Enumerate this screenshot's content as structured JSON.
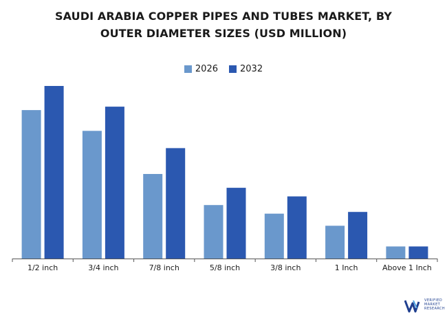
{
  "title_line1": "SAUDI ARABIA COPPER PIPES AND TUBES MARKET, BY",
  "title_line2": "OUTER DIAMETER SIZES (USD MILLION)",
  "colors": {
    "s2026": "#6a98cc",
    "s2032": "#2b58b0",
    "axis": "#555555",
    "text": "#1a1a1a"
  },
  "logo": {
    "line1": "VERIFIED",
    "line2": "MARKET",
    "line3": "RESEARCH",
    "icon": "vmr-logo-icon"
  },
  "chart_data": {
    "type": "bar",
    "title": "SAUDI ARABIA COPPER PIPES AND TUBES MARKET, BY OUTER DIAMETER SIZES (USD MILLION)",
    "categories": [
      "1/2 inch",
      "3/4 inch",
      "7/8 inch",
      "5/8 inch",
      "3/8 inch",
      "1 Inch",
      "Above 1 Inch"
    ],
    "series": [
      {
        "name": "2026",
        "values": [
          8.6,
          7.4,
          4.9,
          3.1,
          2.6,
          1.9,
          0.7
        ]
      },
      {
        "name": "2032",
        "values": [
          10.0,
          8.8,
          6.4,
          4.1,
          3.6,
          2.7,
          0.7
        ]
      }
    ],
    "ylim": [
      0,
      10
    ],
    "xlabel": "",
    "ylabel": "",
    "grid": false,
    "legend": "top-center",
    "y_axis_visible": false
  }
}
